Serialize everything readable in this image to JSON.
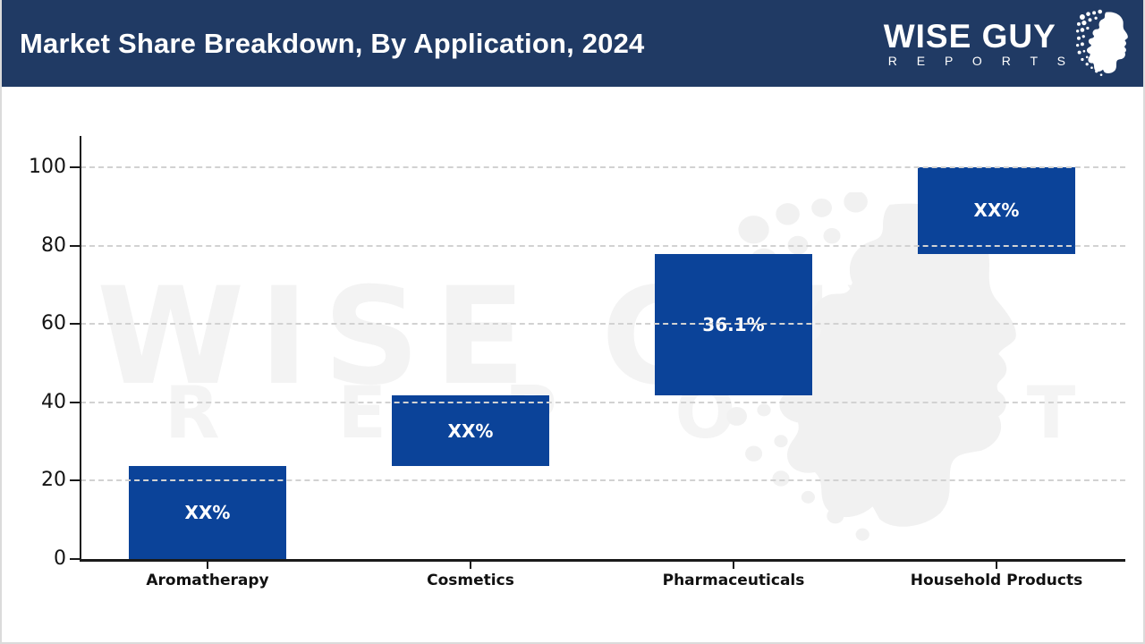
{
  "header": {
    "title": "Market Share Breakdown, By Application, 2024",
    "logo": {
      "line1": "WISE GUY",
      "line2": "R E P O R T S"
    },
    "bg_color": "#203A64"
  },
  "watermark": {
    "line1": "WISE GUY",
    "line2": "R E P O R T S"
  },
  "chart_data": {
    "type": "bar",
    "subtype": "floating-waterfall",
    "title": "Market Share Breakdown, By Application, 2024",
    "categories": [
      "Aromatherapy",
      "Cosmetics",
      "Pharmaceuticals",
      "Household Products"
    ],
    "segments": [
      {
        "category": "Aromatherapy",
        "start": 0,
        "end": 23.7,
        "value_pct": 23.7,
        "label": "XX%"
      },
      {
        "category": "Cosmetics",
        "start": 23.7,
        "end": 41.8,
        "value_pct": 18.1,
        "label": "XX%"
      },
      {
        "category": "Pharmaceuticals",
        "start": 41.8,
        "end": 77.9,
        "value_pct": 36.1,
        "label": "36.1%"
      },
      {
        "category": "Household Products",
        "start": 77.9,
        "end": 100,
        "value_pct": 22.1,
        "label": "XX%"
      }
    ],
    "yticks": [
      0,
      20,
      40,
      60,
      80,
      100
    ],
    "ylim": [
      0,
      107
    ],
    "xlabel": "",
    "ylabel": "",
    "grid": "horizontal-dashed",
    "legend": "none",
    "bar_color": "#0B4399",
    "bar_label_color": "#FFFFFF",
    "axis_color": "#1A1A1A",
    "grid_color": "#D2D2D2"
  }
}
